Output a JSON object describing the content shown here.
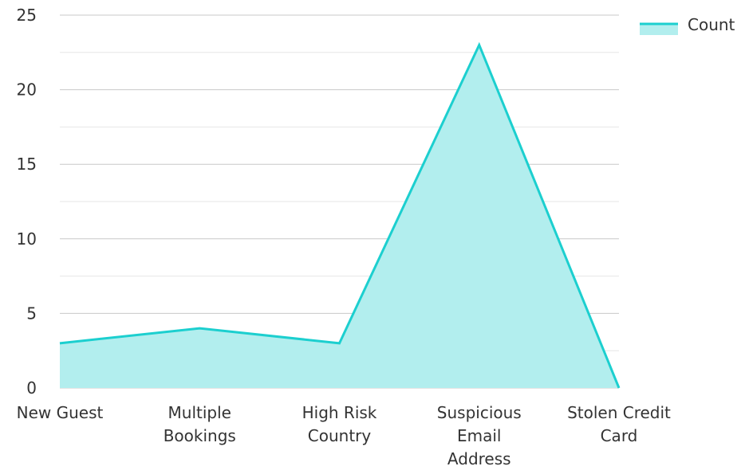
{
  "chart_data": {
    "type": "area",
    "title": "",
    "xlabel": "",
    "ylabel": "",
    "categories": [
      "New Guest",
      "Multiple Bookings",
      "High Risk Country",
      "Suspicious Email Address",
      "Stolen Credit Card"
    ],
    "category_label_lines": [
      [
        "New Guest"
      ],
      [
        "Multiple",
        "Bookings"
      ],
      [
        "High Risk",
        "Country"
      ],
      [
        "Suspicious",
        "Email",
        "Address"
      ],
      [
        "Stolen Credit",
        "Card"
      ]
    ],
    "series": [
      {
        "name": "Count",
        "values": [
          3,
          4,
          3,
          23,
          0
        ]
      }
    ],
    "ylim": [
      0,
      25
    ],
    "y_ticks": [
      0,
      5,
      10,
      15,
      20,
      25
    ],
    "y_tick_labels": [
      "0",
      "5",
      "10",
      "15",
      "20",
      "25"
    ],
    "grid": true,
    "legend_position": "top-right",
    "colors": {
      "line": "#1ccfcf",
      "fill": "#b2eeee",
      "grid_major": "#c8c8c8",
      "grid_minor": "#e6e6e6",
      "text": "#333333"
    }
  }
}
